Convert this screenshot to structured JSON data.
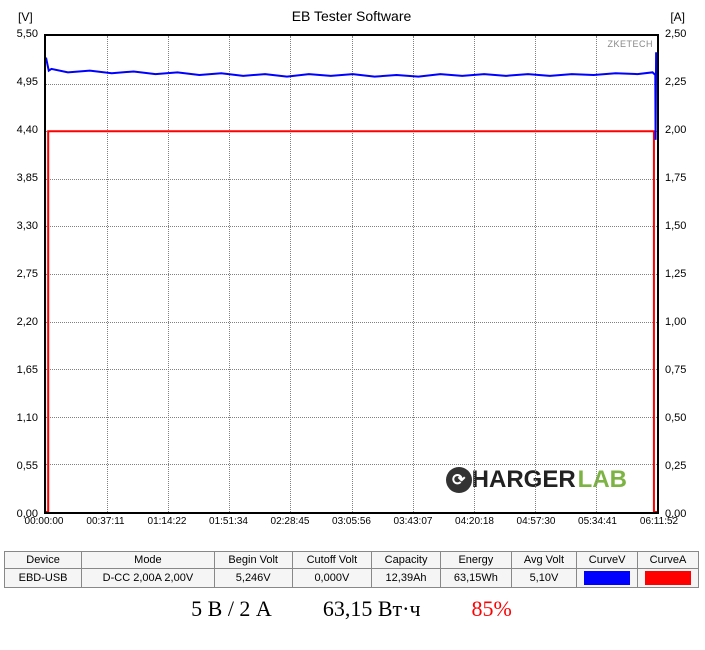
{
  "chart": {
    "title": "EB Tester Software",
    "brand": "ZKETECH",
    "unit_left": "[V]",
    "unit_right": "[A]",
    "y_left": {
      "lim": [
        0.0,
        5.5
      ],
      "ticks": [
        "0,00",
        "0,55",
        "1,10",
        "1,65",
        "2,20",
        "2,75",
        "3,30",
        "3,85",
        "4,40",
        "4,95",
        "5,50"
      ]
    },
    "y_right": {
      "lim": [
        0.0,
        2.5
      ],
      "ticks": [
        "0,00",
        "0,25",
        "0,50",
        "0,75",
        "1,00",
        "1,25",
        "1,50",
        "1,75",
        "2,00",
        "2,25",
        "2,50"
      ]
    },
    "x": {
      "lim": [
        0,
        22312
      ],
      "ticks": [
        "00:00:00",
        "00:37:11",
        "01:14:22",
        "01:51:34",
        "02:28:45",
        "03:05:56",
        "03:43:07",
        "04:20:18",
        "04:57:30",
        "05:34:41",
        "06:11:52"
      ]
    },
    "curve_v": {
      "color": "#0000ff",
      "width": 2,
      "points": [
        [
          0,
          5.25
        ],
        [
          100,
          5.1
        ],
        [
          200,
          5.12
        ],
        [
          800,
          5.08
        ],
        [
          1600,
          5.1
        ],
        [
          2400,
          5.07
        ],
        [
          3200,
          5.09
        ],
        [
          4000,
          5.06
        ],
        [
          4800,
          5.08
        ],
        [
          5600,
          5.05
        ],
        [
          6400,
          5.07
        ],
        [
          7200,
          5.04
        ],
        [
          8000,
          5.06
        ],
        [
          8800,
          5.03
        ],
        [
          9600,
          5.06
        ],
        [
          10400,
          5.04
        ],
        [
          11200,
          5.06
        ],
        [
          12000,
          5.03
        ],
        [
          12800,
          5.05
        ],
        [
          13600,
          5.03
        ],
        [
          14400,
          5.06
        ],
        [
          15200,
          5.04
        ],
        [
          16000,
          5.06
        ],
        [
          16800,
          5.04
        ],
        [
          17600,
          5.06
        ],
        [
          18400,
          5.04
        ],
        [
          19200,
          5.06
        ],
        [
          20000,
          5.05
        ],
        [
          20800,
          5.07
        ],
        [
          21600,
          5.06
        ],
        [
          22150,
          5.08
        ],
        [
          22250,
          5.05
        ],
        [
          22260,
          4.3
        ],
        [
          22280,
          5.3
        ],
        [
          22312,
          5.3
        ]
      ]
    },
    "curve_a": {
      "color": "#ff0000",
      "width": 2,
      "points": [
        [
          0,
          0.0
        ],
        [
          80,
          0.0
        ],
        [
          80,
          2.0
        ],
        [
          22200,
          2.0
        ],
        [
          22200,
          0.0
        ],
        [
          22312,
          0.0
        ]
      ]
    },
    "grid_color": "#808080",
    "background_color": "#ffffff"
  },
  "table": {
    "headers": [
      "Device",
      "Mode",
      "Begin Volt",
      "Cutoff Volt",
      "Capacity",
      "Energy",
      "Avg Volt",
      "CurveV",
      "CurveA"
    ],
    "row": {
      "device": "EBD-USB",
      "mode": "D-CC  2,00A  2,00V",
      "begin_volt": "5,246V",
      "cutoff_volt": "0,000V",
      "capacity": "12,39Ah",
      "energy": "63,15Wh",
      "avg_volt": "5,10V",
      "curve_v_color": "#0000ff",
      "curve_a_color": "#ff0000"
    }
  },
  "summary": {
    "left": "5 В / 2 А",
    "mid": "63,15  Вт·ч",
    "pct": "85%"
  },
  "logo": {
    "text1": "HARGER",
    "text2": "LAB"
  }
}
